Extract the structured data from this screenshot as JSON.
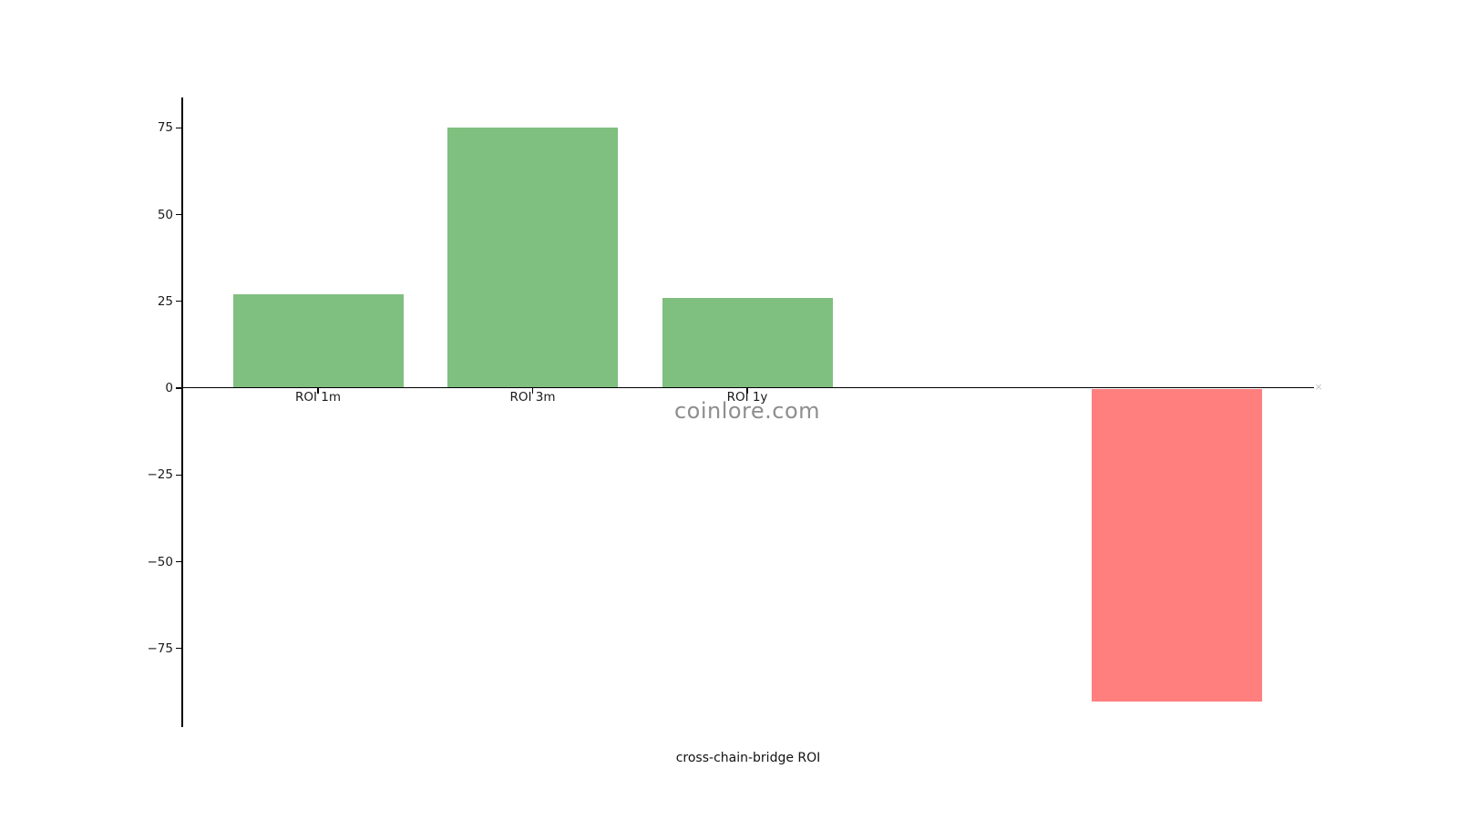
{
  "page": {
    "background": "#ffffff"
  },
  "chart_data": {
    "type": "bar",
    "title": "cross-chain-bridge ROI",
    "watermark": "coinlore.com",
    "categories": [
      "ROI 1m",
      "ROI 3m",
      "ROI 1y",
      "",
      ""
    ],
    "values": [
      27,
      75,
      26,
      null,
      -90
    ],
    "bar_colors": [
      "#7fbf7f",
      "#7fbf7f",
      "#7fbf7f",
      null,
      "#ff7f7f"
    ],
    "positive_color": "#7fbf7f",
    "negative_color": "#ff7f7f",
    "y_ticks": [
      {
        "label": "75",
        "value": 75
      },
      {
        "label": "50",
        "value": 50
      },
      {
        "label": "25",
        "value": 25
      },
      {
        "label": "0",
        "value": 0
      },
      {
        "label": "−25",
        "value": -25
      },
      {
        "label": "−50",
        "value": -50
      },
      {
        "label": "−75",
        "value": -75
      }
    ],
    "ylim": [
      -98,
      84
    ],
    "xlabel": "",
    "ylabel": "",
    "grid": false,
    "legend": null,
    "axis_color": "#000000",
    "text_color": "#1a1a1a",
    "watermark_color": "#8e8e8e",
    "axis_end_artifact": "×"
  }
}
